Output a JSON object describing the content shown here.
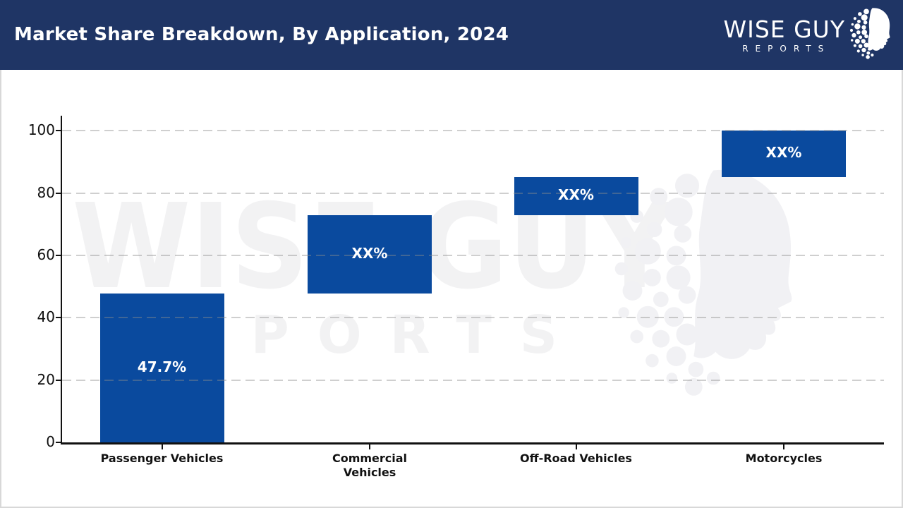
{
  "header": {
    "title": "Market Share Breakdown, By Application, 2024",
    "bg_color": "#1f3565",
    "logo": {
      "wordmark": "WISE GUY",
      "subtext": "REPORTS"
    }
  },
  "watermark": {
    "wordmark": "WISE GUY",
    "subtext": "REPORTS",
    "color": "#f2f2f3"
  },
  "chart_data": {
    "type": "bar",
    "subtype": "waterfall",
    "title": "Market Share Breakdown, By Application, 2024",
    "categories": [
      "Passenger Vehicles",
      "Commercial Vehicles",
      "Off-Road Vehicles",
      "Motorcycles"
    ],
    "category_display_lines": [
      [
        "Passenger Vehicles"
      ],
      [
        "Commercial",
        "Vehicles"
      ],
      [
        "Off-Road Vehicles"
      ],
      [
        "Motorcycles"
      ]
    ],
    "bars": [
      {
        "category": "Passenger Vehicles",
        "label": "47.7%",
        "start": 0,
        "end": 47.7
      },
      {
        "category": "Commercial Vehicles",
        "label": "XX%",
        "start": 47.7,
        "end": 72.8
      },
      {
        "category": "Off-Road Vehicles",
        "label": "XX%",
        "start": 72.8,
        "end": 85.2
      },
      {
        "category": "Motorcycles",
        "label": "XX%",
        "start": 85.2,
        "end": 100
      }
    ],
    "ylim": [
      0,
      100
    ],
    "yticks": [
      0,
      20,
      40,
      60,
      80,
      100
    ],
    "grid": "horizontal dashed",
    "legend": "none",
    "bar_color": "#0a4a9e",
    "bar_label_color": "#ffffff",
    "axis_color": "#111111",
    "grid_color": "#d9d9d9"
  }
}
